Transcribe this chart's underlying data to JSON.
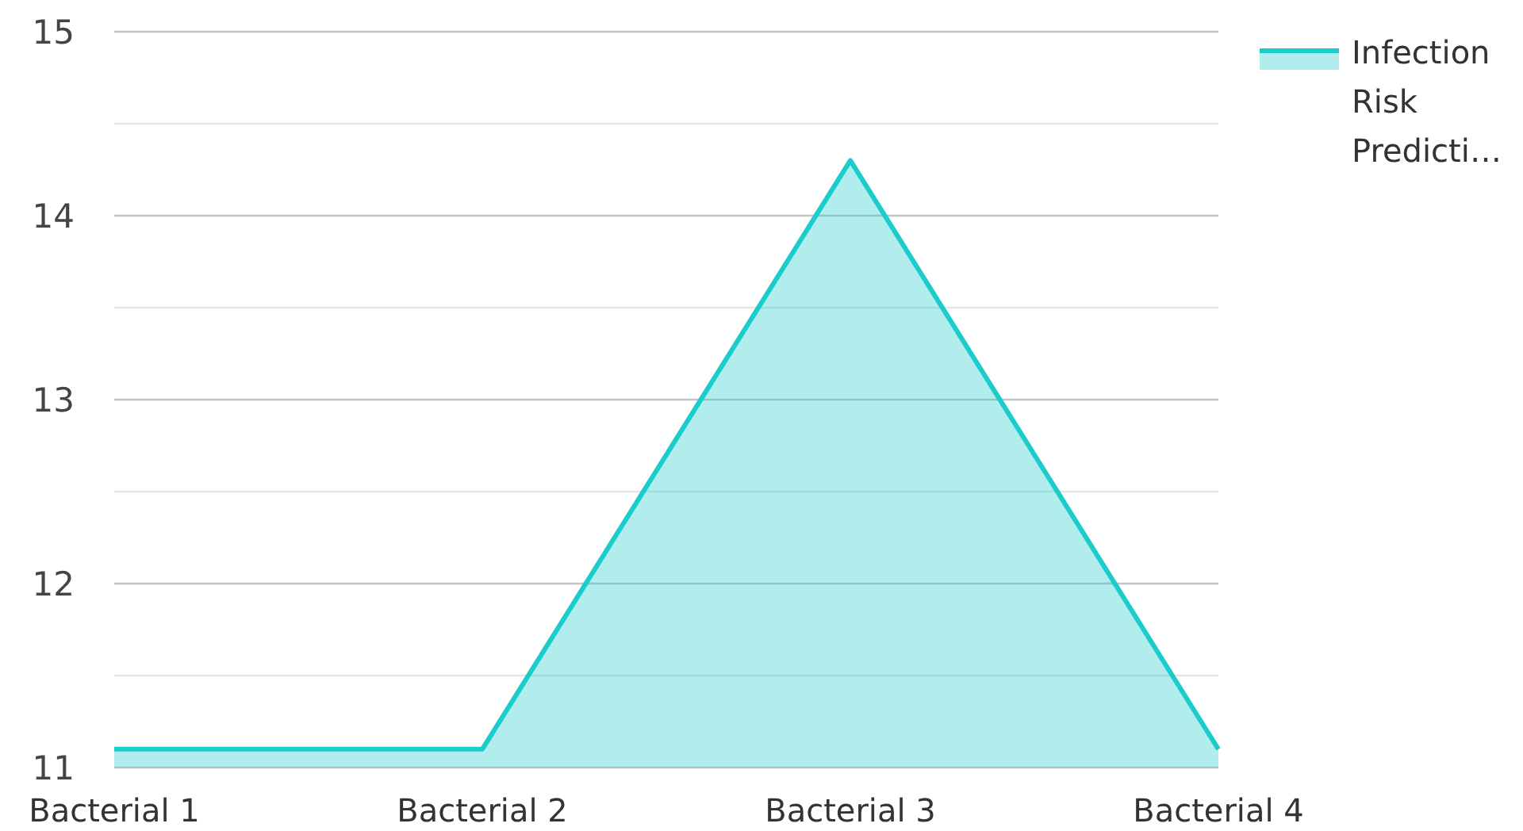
{
  "chart_data": {
    "type": "area",
    "categories": [
      "Bacterial 1",
      "Bacterial 2",
      "Bacterial 3",
      "Bacterial 4"
    ],
    "series": [
      {
        "name": "Infection Risk Predicti…",
        "color": "#1ccbcb",
        "values": [
          11.1,
          11.1,
          14.3,
          11.1
        ]
      }
    ],
    "ylim": [
      11,
      15
    ],
    "yticks": [
      11,
      {
        "value": 11.5,
        "label": null
      },
      12,
      {
        "value": 12.5,
        "label": null
      },
      13,
      {
        "value": 13.5,
        "label": null
      },
      14,
      {
        "value": 14.5,
        "label": null
      },
      15
    ],
    "grid": "y",
    "legend": "top right"
  }
}
